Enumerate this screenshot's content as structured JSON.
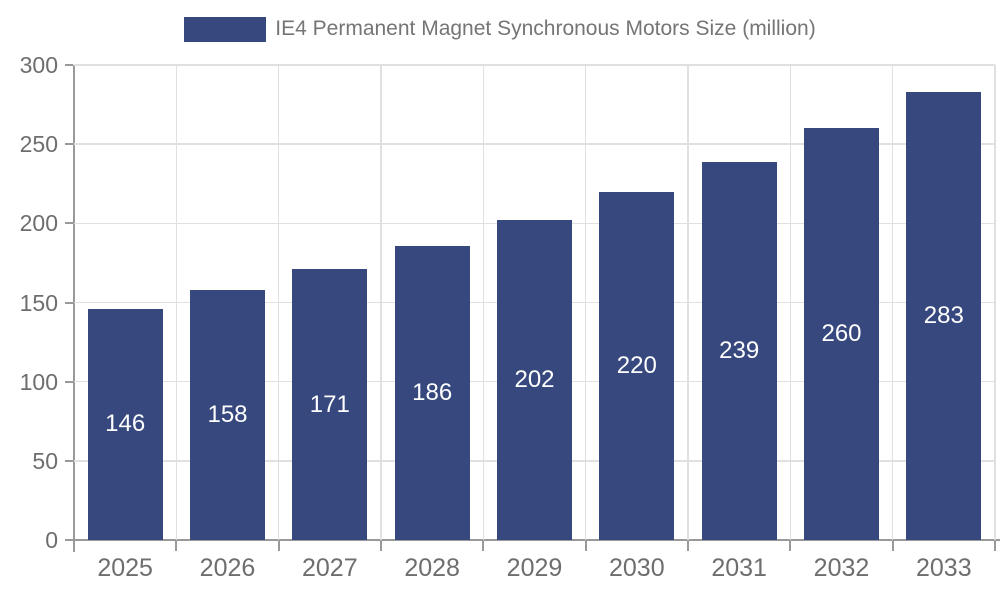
{
  "chart_data": {
    "type": "bar",
    "title": "IE4 Permanent Magnet Synchronous Motors Size (million)",
    "categories": [
      "2025",
      "2026",
      "2027",
      "2028",
      "2029",
      "2030",
      "2031",
      "2032",
      "2033"
    ],
    "values": [
      146,
      158,
      171,
      186,
      202,
      220,
      239,
      260,
      283
    ],
    "xlabel": "",
    "ylabel": "",
    "ylim": [
      0,
      300
    ],
    "yticks": [
      0,
      50,
      100,
      150,
      200,
      250,
      300
    ],
    "grid": true,
    "legend_position": "top",
    "value_labels": "inside-center"
  },
  "legend": {
    "label": "IE4 Permanent Magnet Synchronous Motors Size (million)"
  },
  "colors": {
    "bar": "#36487e",
    "axis_line": "#999999",
    "gridline": "#e0e0e0",
    "tick_label_text": "#6e6e6e",
    "legend_text": "#757575",
    "value_label_text": "#ffffff",
    "background": "#ffffff"
  }
}
